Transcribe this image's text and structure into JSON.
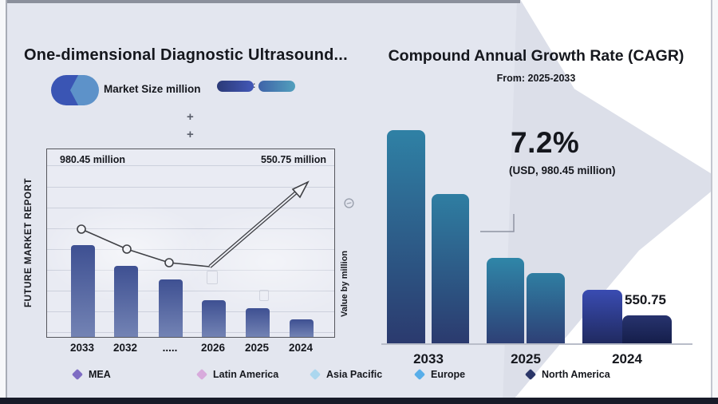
{
  "header": {
    "left_title": "One-dimensional Diagnostic Ultrasound...",
    "brand_label": "Market Size million",
    "pill_separator": ":",
    "plus_top": "+",
    "plus_bottom": "+"
  },
  "cagr": {
    "title": "Compound Annual Growth Rate (CAGR)",
    "subtitle": "From: 2025-2033",
    "rate": "7.2%",
    "detail": "(USD, 980.45 million)",
    "end_value_label": "550.75"
  },
  "market_chart": {
    "annotation_left": "980.45 million",
    "annotation_right": "550.75 million",
    "side_label": "FUTURE MARKET REPORT",
    "value_axis_label": "Value by million"
  },
  "legend": {
    "items": [
      {
        "label": "MEA",
        "color": "#7e6cc3"
      },
      {
        "label": "Latin America",
        "color": "#d8aadc"
      },
      {
        "label": "Asia Pacific",
        "color": "#abd7ef"
      },
      {
        "label": "Europe",
        "color": "#58aee9"
      },
      {
        "label": "North America",
        "color": "#2b3668"
      }
    ]
  },
  "chart_data": [
    {
      "id": "market-size-by-year",
      "type": "bar",
      "title": "One-dimensional Diagnostic Ultrasound... Market Size million",
      "categories": [
        "2033",
        "2032",
        ".....",
        "2026",
        "2025",
        "2024"
      ],
      "values": [
        100,
        77,
        63,
        40,
        31,
        19
      ],
      "ylabel": "Value by million",
      "xlabel": "",
      "grid": true,
      "annotations": [
        "980.45 million",
        "550.75 million"
      ],
      "note": "bar values are relative heights (max = 100); y-axis has no numeric ticks in source",
      "overlay": "declining marker line over first three bars ending in an upward outlined arrow toward 550.75 million"
    },
    {
      "id": "cagr-by-year",
      "type": "bar",
      "title": "Compound Annual Growth Rate (CAGR)",
      "subtitle": "From: 2025-2033",
      "categories": [
        "2033",
        "2025",
        "2024"
      ],
      "series": [
        {
          "name": "series-a",
          "values": [
            100,
            40,
            25
          ]
        },
        {
          "name": "series-b",
          "values": [
            70,
            33,
            13
          ]
        }
      ],
      "data_labels": {
        "2024": "550.75"
      },
      "cagr_rate": "7.2%",
      "cagr_detail": "(USD, 980.45 million)",
      "note": "bar values are relative heights (max = 100); y-axis has no numeric ticks in source",
      "group_gradients": [
        [
          [
            "#2f81a5",
            "#2b3a6e"
          ],
          [
            "#2f7ea2",
            "#2b3a6e"
          ]
        ],
        [
          [
            "#2f86a8",
            "#2e4076"
          ],
          [
            "#2f7ea2",
            "#2e4076"
          ]
        ],
        [
          [
            "#3a4cb2",
            "#202a60"
          ],
          [
            "#27336e",
            "#151e4a"
          ]
        ]
      ]
    }
  ],
  "colors": {
    "background": "#e3e6ef",
    "text": "#15171d",
    "market_bar_top": "#3e5092",
    "market_bar_bottom": "#7383b4",
    "pill_left": [
      "#2b3a77",
      "#4358b8"
    ],
    "pill_right": [
      "#3f63a8",
      "#52a0bd"
    ],
    "logo_base": "#3a55b4",
    "logo_facet": "#5d92c9"
  }
}
